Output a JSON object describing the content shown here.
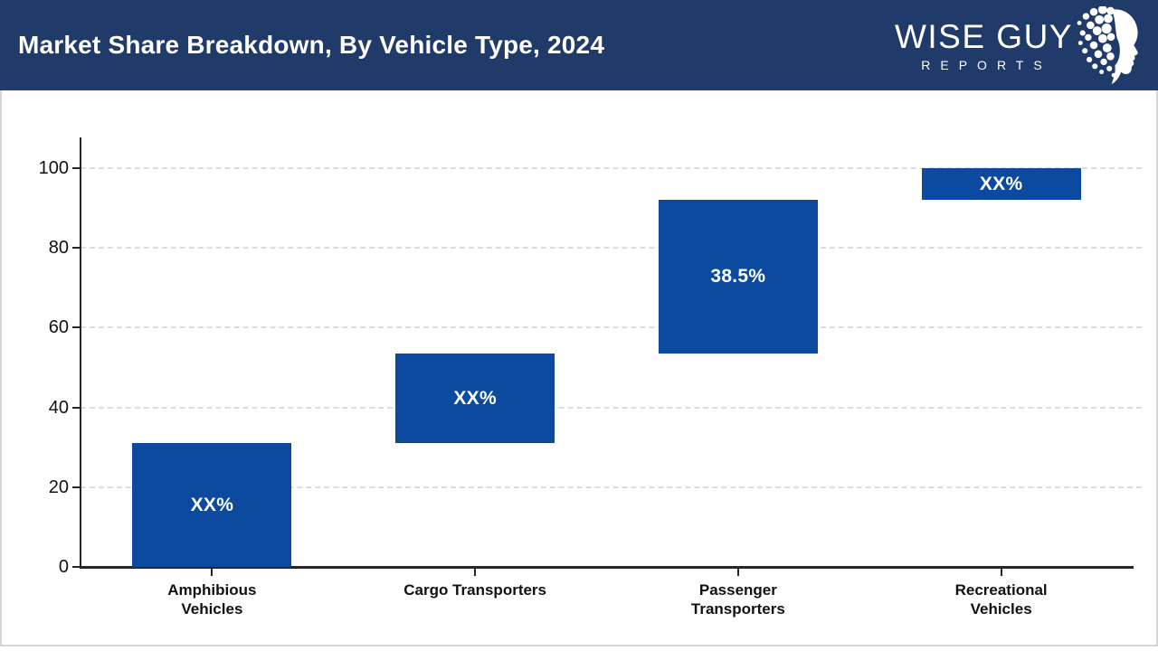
{
  "header": {
    "title": "Market Share Breakdown, By Vehicle Type, 2024",
    "logo": {
      "line1": "WISE GUY",
      "line2": "REPORTS"
    }
  },
  "watermark": {
    "line1": "WISE GUY",
    "line2": "R E P O R T S"
  },
  "colors": {
    "header_bg": "#203a69",
    "bar_blue": "#0b4a9e",
    "grid_gray": "#dcdcdc",
    "axis_dark": "#262626",
    "watermark_gray": "#f1f1f1"
  },
  "chart_data": {
    "type": "bar",
    "variant": "floating-segment-waterfall",
    "title": "Market Share Breakdown, By Vehicle Type, 2024",
    "categories": [
      "Amphibious\nVehicles",
      "Cargo Transporters",
      "Passenger\nTransporters",
      "Recreational\nVehicles"
    ],
    "series": [
      {
        "name": "Market share (%)",
        "segments": [
          {
            "category": "Amphibious Vehicles",
            "start": 0,
            "end": 31,
            "label": "XX%"
          },
          {
            "category": "Cargo Transporters",
            "start": 31,
            "end": 53.5,
            "label": "XX%"
          },
          {
            "category": "Passenger Transporters",
            "start": 53.5,
            "end": 92,
            "label": "38.5%"
          },
          {
            "category": "Recreational Vehicles",
            "start": 92,
            "end": 100,
            "label": "XX%"
          }
        ]
      }
    ],
    "xlabel": "",
    "ylabel": "",
    "yticks": [
      0,
      20,
      40,
      60,
      80,
      100
    ],
    "ylim": [
      0,
      107
    ],
    "grid": "horizontal-dashed",
    "legend": "none",
    "bar_color": "#0b4a9e",
    "bar_label_color": "#ffffff"
  }
}
